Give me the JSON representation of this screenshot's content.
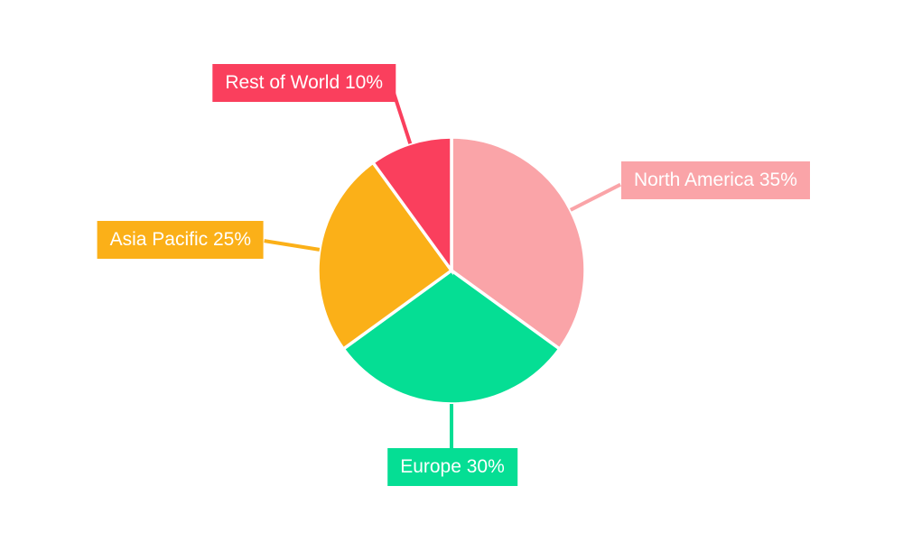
{
  "chart_data": {
    "type": "pie",
    "title": "",
    "start_angle_deg_from_top": 0,
    "direction": "clockwise",
    "background": "#ffffff",
    "label_text_color": "#ffffff",
    "separator_color": "#ffffff",
    "label_style": "callout boxes with leader lines, box color matches slice color",
    "legend_position": "none",
    "slices": [
      {
        "name": "North America",
        "value": 35,
        "percent_label": "35%",
        "label": "North America 35%",
        "color": "#faa4a8"
      },
      {
        "name": "Europe",
        "value": 30,
        "percent_label": "30%",
        "label": "Europe 30%",
        "color": "#05de94"
      },
      {
        "name": "Asia Pacific",
        "value": 25,
        "percent_label": "25%",
        "label": "Asia Pacific 25%",
        "color": "#fbb018"
      },
      {
        "name": "Rest of World",
        "value": 10,
        "percent_label": "10%",
        "label": "Rest of World 10%",
        "color": "#fa3f5d"
      }
    ]
  }
}
